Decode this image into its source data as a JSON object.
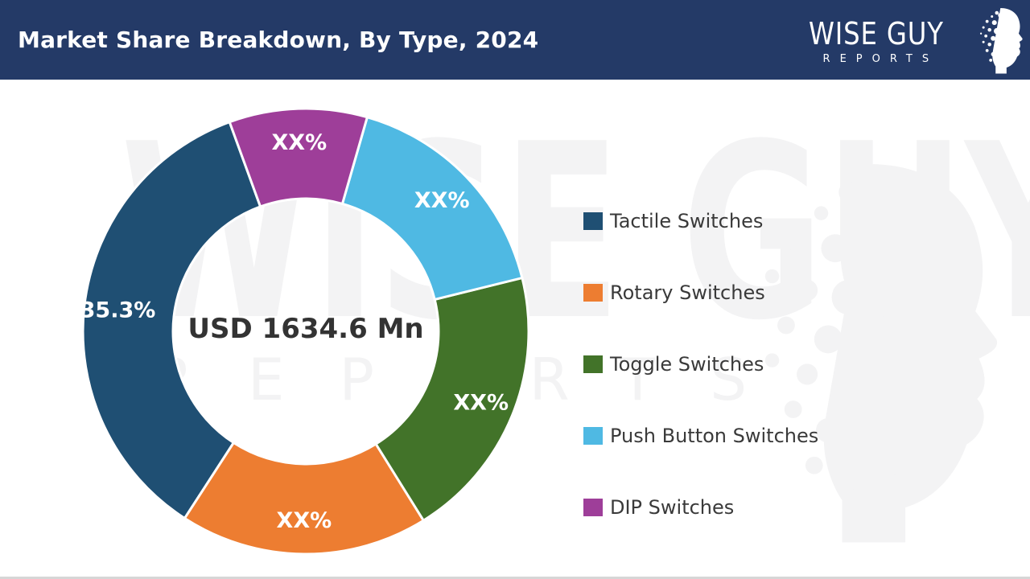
{
  "header": {
    "title": "Market Share Breakdown, By Type, 2024",
    "logo": {
      "line1": "WISE GUY",
      "line2": "REPORTS"
    }
  },
  "watermark": {
    "line1": "WISE GUY",
    "line2": "REPORTS"
  },
  "chart_data": {
    "type": "pie",
    "subtype": "donut",
    "title": "Market Share Breakdown, By Type, 2024",
    "center_label": "USD 1634.6 Mn",
    "units": "percent share of USD 1634.6 Mn",
    "start_angle_deg": 110,
    "direction": "counterclockwise",
    "legend_position": "right",
    "series": [
      {
        "name": "Tactile Switches",
        "value": 35.3,
        "display_label": "35.3%",
        "color": "#1f4f73"
      },
      {
        "name": "Rotary Switches",
        "value": 18.0,
        "display_label": "XX%",
        "color": "#ed7d31"
      },
      {
        "name": "Toggle Switches",
        "value": 20.0,
        "display_label": "XX%",
        "color": "#427329"
      },
      {
        "name": "Push Button Switches",
        "value": 16.7,
        "display_label": "XX%",
        "color": "#4fb9e3"
      },
      {
        "name": "DIP Switches",
        "value": 10.0,
        "display_label": "XX%",
        "color": "#9e3e99"
      }
    ]
  }
}
